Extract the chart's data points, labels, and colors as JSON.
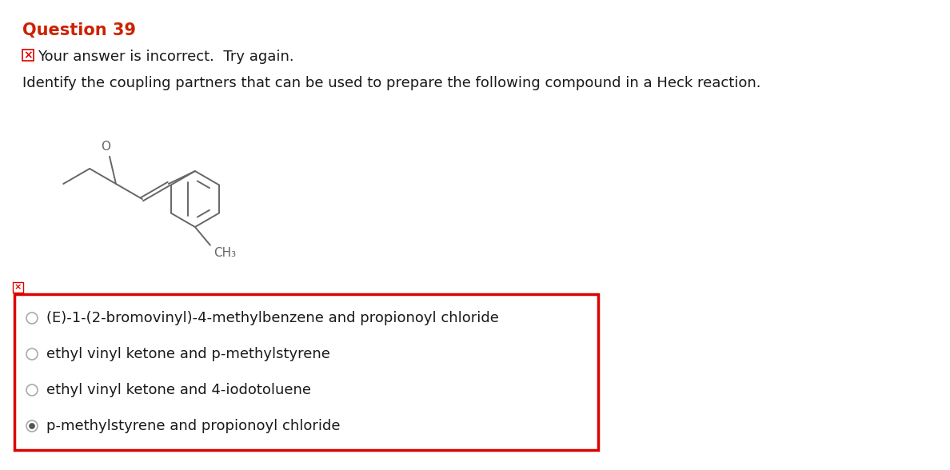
{
  "title": "Question 39",
  "title_color": "#cc2200",
  "title_fontsize": 15,
  "incorrect_text": "Your answer is incorrect.  Try again.",
  "incorrect_fontsize": 13,
  "question_text": "Identify the coupling partners that can be used to prepare the following compound in a Heck reaction.",
  "question_fontsize": 13,
  "options": [
    "(E)-1-(2-bromovinyl)-4-methylbenzene and propionoyl chloride",
    "ethyl vinyl ketone and p-methylstyrene",
    "ethyl vinyl ketone and 4-iodotoluene",
    "p-methylstyrene and propionoyl chloride"
  ],
  "selected_option": 3,
  "option_fontsize": 13,
  "box_color": "#dd0000",
  "radio_color": "#aaaaaa",
  "background_color": "#ffffff",
  "text_color": "#1a1a1a",
  "molecule_color": "#666666",
  "molecule_lw": 1.4
}
